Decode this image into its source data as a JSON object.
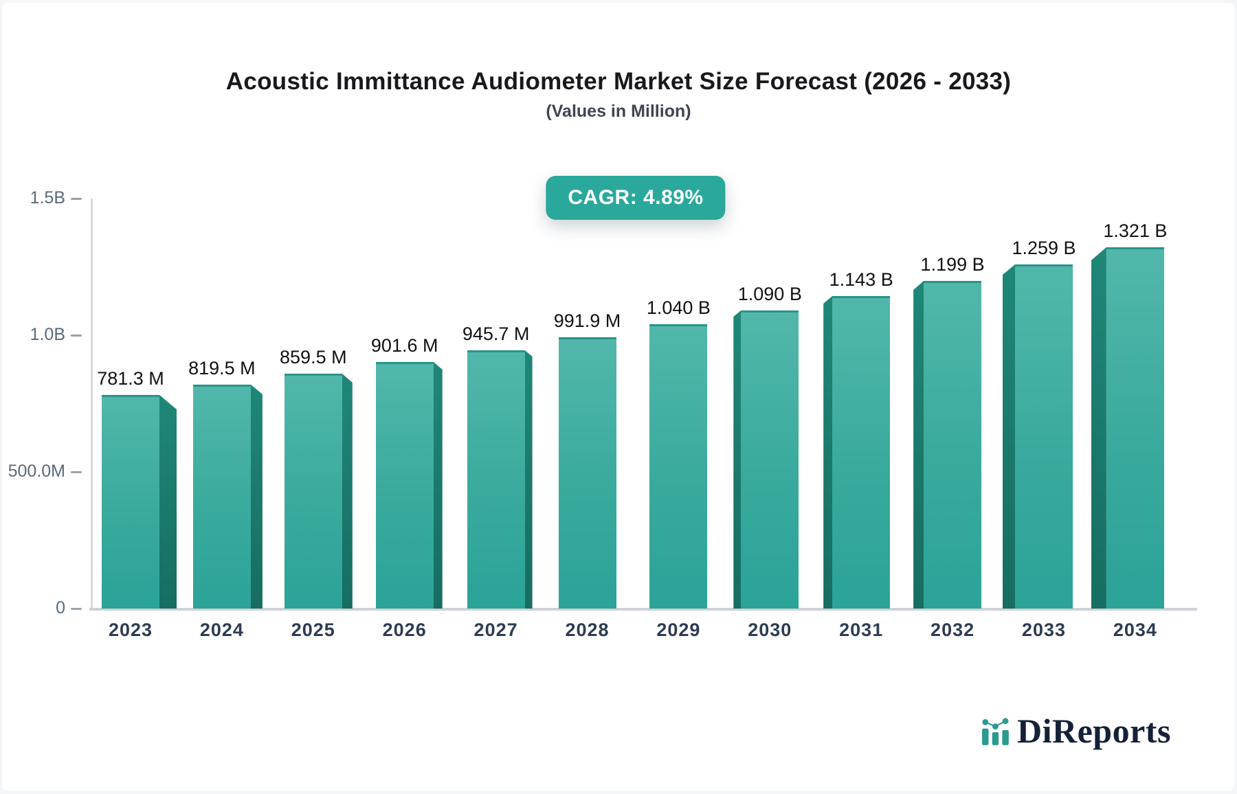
{
  "page": {
    "background": "#f3f5f7",
    "card_background": "#ffffff"
  },
  "header": {
    "title": "Acoustic Immittance Audiometer Market Size Forecast (2026 - 2033)",
    "subtitle": "(Values in Million)",
    "badge": "CAGR: 4.89%"
  },
  "chart_data": {
    "type": "bar",
    "title": "Acoustic Immittance Audiometer Market Size Forecast (2026 - 2033)",
    "subtitle": "(Values in Million)",
    "annotation": "CAGR: 4.89%",
    "categories": [
      "2023",
      "2024",
      "2025",
      "2026",
      "2027",
      "2028",
      "2029",
      "2030",
      "2031",
      "2032",
      "2033",
      "2034"
    ],
    "values_millions": [
      781.3,
      819.5,
      859.5,
      901.6,
      945.7,
      991.9,
      1040,
      1090,
      1143,
      1199,
      1259,
      1321
    ],
    "bar_labels": [
      "781.3 M",
      "819.5 M",
      "859.5 M",
      "901.6 M",
      "945.7 M",
      "991.9 M",
      "1.040 B",
      "1.090 B",
      "1.143 B",
      "1.199 B",
      "1.259 B",
      "1.321 B"
    ],
    "xlabel": "",
    "ylabel": "",
    "ylim_millions": [
      0,
      1500
    ],
    "y_ticks": [
      {
        "label": "0",
        "value_millions": 0
      },
      {
        "label": "500.0M",
        "value_millions": 500
      },
      {
        "label": "1.0B",
        "value_millions": 1000
      },
      {
        "label": "1.5B",
        "value_millions": 1500
      }
    ],
    "grid": false,
    "legend": false,
    "style": "3d-perspective-bars",
    "colors": {
      "bar_face_top": "#52b7ab",
      "bar_face_bottom": "#2ba398",
      "bar_side_top": "#1f8778",
      "bar_side_bottom": "#176d61",
      "badge_background": "#2aa89b",
      "badge_text": "#ffffff",
      "axis_line": "#ced1d7",
      "tick_label": "#5a6a7a",
      "year_label": "#2d3c52",
      "value_label": "#101114"
    }
  },
  "logo": {
    "text": "DiReports",
    "icon": "bar-line-chart-icon",
    "text_color": "#142138",
    "icon_color": "#2b9a8f"
  }
}
